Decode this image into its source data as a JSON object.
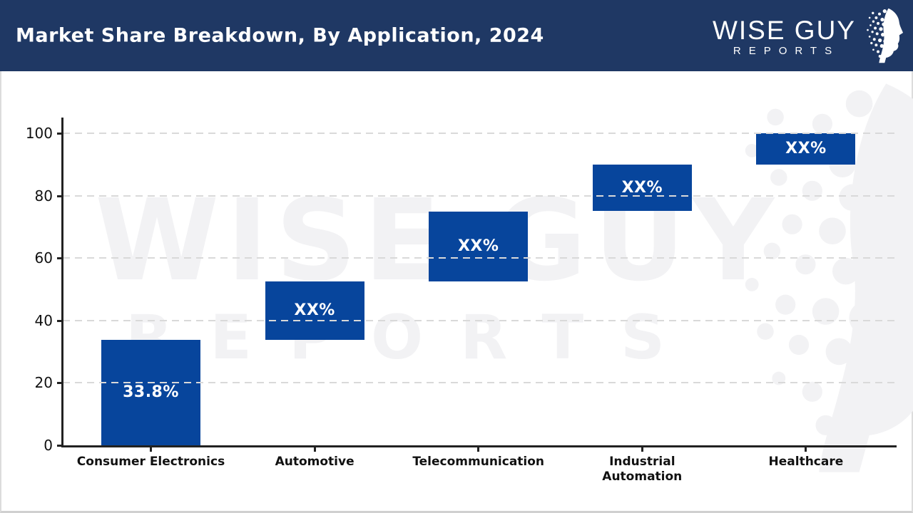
{
  "header": {
    "title": "Market Share Breakdown, By Application, 2024",
    "logo": {
      "wordmark": "WISE GUY",
      "subtext": "REPORTS"
    }
  },
  "watermark": {
    "line1": "WISE GUY",
    "line2": "REPORTS"
  },
  "colors": {
    "header_bg": "#1f3864",
    "bar_fill": "#07459c",
    "bar_label_text": "#ffffff",
    "gridline": "#d9d9d9",
    "axis": "#222222",
    "watermark_tint": "#f2f2f4"
  },
  "chart_data": {
    "type": "bar",
    "variant": "waterfall",
    "title": "Market Share Breakdown, By Application, 2024",
    "unit": "percent",
    "categories": [
      "Consumer Electronics",
      "Automotive",
      "Telecommunication",
      "Industrial Automation",
      "Healthcare"
    ],
    "segments": [
      {
        "category": "Consumer Electronics",
        "start": 0,
        "end": 33.8,
        "label": "33.8%"
      },
      {
        "category": "Automotive",
        "start": 33.8,
        "end": 52.5,
        "label": "XX%"
      },
      {
        "category": "Telecommunication",
        "start": 52.5,
        "end": 75,
        "label": "XX%"
      },
      {
        "category": "Industrial Automation",
        "start": 75,
        "end": 90,
        "label": "XX%"
      },
      {
        "category": "Healthcare",
        "start": 90,
        "end": 100,
        "label": "XX%"
      }
    ],
    "yticks": [
      0,
      20,
      40,
      60,
      80,
      100
    ],
    "ylim": [
      0,
      105
    ],
    "xlabel": "",
    "ylabel": "",
    "grid": "horizontal-dashed",
    "legend": "none"
  }
}
